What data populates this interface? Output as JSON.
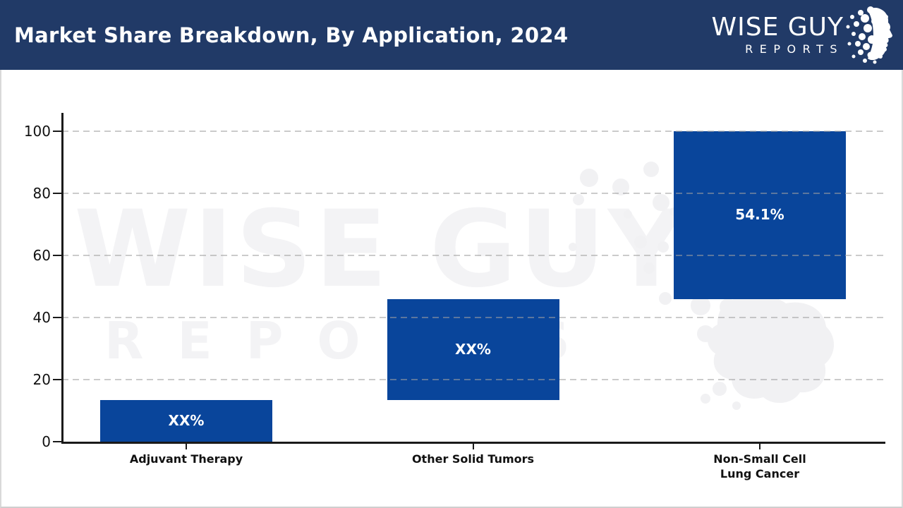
{
  "header": {
    "title": "Market Share Breakdown, By Application, 2024",
    "logo": {
      "name": "WISE GUY",
      "tagline": "REPORTS"
    }
  },
  "watermark": {
    "line1": "WISE GUY",
    "line2": "REPORTS"
  },
  "chart_data": {
    "type": "bar",
    "variant": "waterfall",
    "title": "Market Share Breakdown, By Application, 2024",
    "categories": [
      "Adjuvant Therapy",
      "Other Solid Tumors",
      "Non-Small Cell\nLung Cancer"
    ],
    "series": [
      {
        "name": "Market share (%)",
        "values": [
          13.3,
          32.6,
          54.1
        ],
        "cumulative_starts": [
          0,
          13.3,
          45.9
        ],
        "value_labels": [
          "XX%",
          "XX%",
          "54.1%"
        ]
      }
    ],
    "xlabel": "",
    "ylabel": "",
    "ylim": [
      0,
      100
    ],
    "yticks": [
      0,
      20,
      40,
      60,
      80,
      100
    ],
    "grid": {
      "horizontal": true,
      "style": "dashed"
    },
    "legend": "none",
    "colors": {
      "bar": "#09459b",
      "header_bg": "#213a67",
      "axis": "#1a1a1a",
      "gridline_on_white": "#d2d2d2",
      "watermark": "#f3f3f5",
      "value_label_text": "#ffffff",
      "page_border": "#d9d9d9"
    }
  }
}
